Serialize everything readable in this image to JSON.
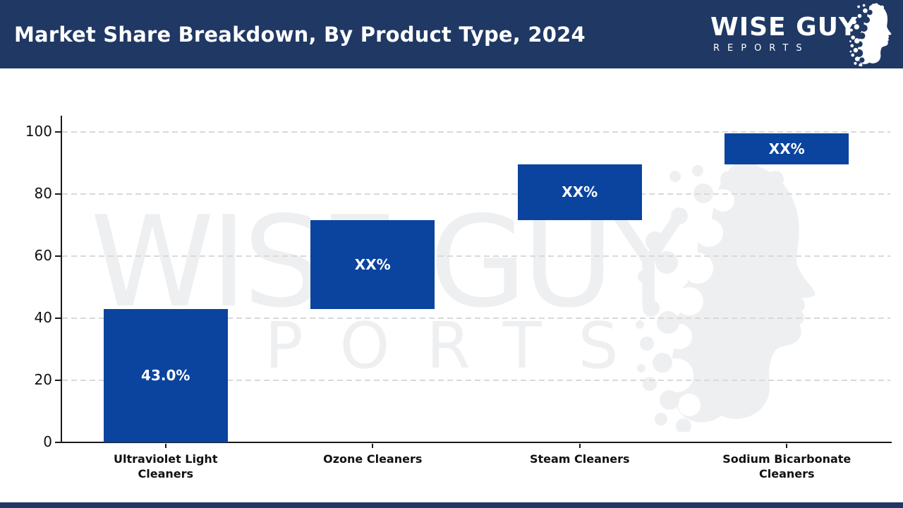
{
  "header": {
    "title": "Market Share Breakdown, By Product Type, 2024",
    "logo": {
      "line1": "WISE GUY",
      "line2": "REPORTS"
    },
    "bg_color": "#1f3864"
  },
  "watermark": {
    "line1": "WISE GUY",
    "line2": "REPORTS"
  },
  "chart_data": {
    "type": "bar",
    "subtype": "waterfall",
    "title": "Market Share Breakdown, By Product Type, 2024",
    "categories": [
      "Ultraviolet Light Cleaners",
      "Ozone Cleaners",
      "Steam Cleaners",
      "Sodium Bicarbonate Cleaners"
    ],
    "segments": [
      {
        "category": "Ultraviolet Light Cleaners",
        "start": 0,
        "end": 43.0,
        "label": "43.0%"
      },
      {
        "category": "Ozone Cleaners",
        "start": 43.0,
        "end": 71.6,
        "label": "XX%"
      },
      {
        "category": "Steam Cleaners",
        "start": 71.6,
        "end": 89.6,
        "label": "XX%"
      },
      {
        "category": "Sodium Bicarbonate Cleaners",
        "start": 89.6,
        "end": 99.6,
        "label": "XX%"
      }
    ],
    "yticks": [
      0,
      20,
      40,
      60,
      80,
      100
    ],
    "ylim": [
      0,
      105
    ],
    "xlabel": "",
    "ylabel": "",
    "grid": true,
    "legend": false,
    "bar_color": "#0a449e",
    "bar_label_color": "#ffffff",
    "gridline_color": "#d9d9d9",
    "axis_color": "#1a1a1a"
  }
}
